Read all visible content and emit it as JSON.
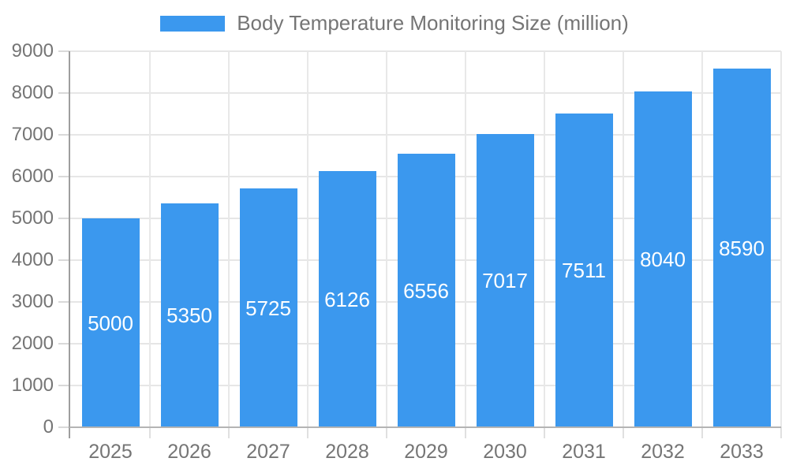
{
  "legend": {
    "label": "Body Temperature Monitoring Size (million)",
    "swatch_color": "#3b98ee",
    "position": "top"
  },
  "chart_data": {
    "type": "bar",
    "title": "Body Temperature Monitoring Size (million)",
    "categories": [
      "2025",
      "2026",
      "2027",
      "2028",
      "2029",
      "2030",
      "2031",
      "2032",
      "2033"
    ],
    "series": [
      {
        "name": "Body Temperature Monitoring Size (million)",
        "values": [
          5000,
          5350,
          5725,
          6126,
          6556,
          7017,
          7511,
          8040,
          8590
        ]
      }
    ],
    "bar_labels": [
      "5000",
      "5350",
      "5725",
      "6126",
      "6556",
      "7017",
      "7511",
      "8040",
      "8590"
    ],
    "xlabel": "",
    "ylabel": "",
    "ylim": [
      0,
      9000
    ],
    "ytick_step": 1000,
    "yticks": [
      "0",
      "1000",
      "2000",
      "3000",
      "4000",
      "5000",
      "6000",
      "7000",
      "8000",
      "9000"
    ],
    "grid": true,
    "legend_position": "top",
    "colors": {
      "bar": "#3b98ee",
      "bar_label": "#ffffff",
      "gridline": "#e6e6e6",
      "axis_line": "#9e9e9e",
      "baseline": "#b4b4b4",
      "tick_label": "#757575",
      "legend_text": "#757575",
      "background": "#ffffff"
    }
  }
}
